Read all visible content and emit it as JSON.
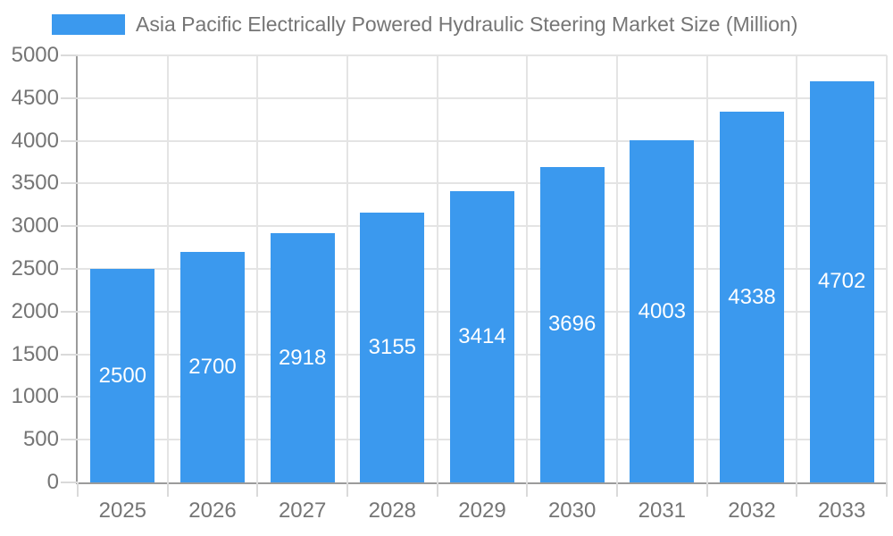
{
  "legend": {
    "swatch_color": "#3b99ee"
  },
  "chart_data": {
    "type": "bar",
    "title": "Asia Pacific Electrically Powered Hydraulic Steering Market Size (Million)",
    "categories": [
      "2025",
      "2026",
      "2027",
      "2028",
      "2029",
      "2030",
      "2031",
      "2032",
      "2033"
    ],
    "values": [
      2500,
      2700,
      2918,
      3155,
      3414,
      3696,
      4003,
      4338,
      4702
    ],
    "xlabel": "",
    "ylabel": "",
    "ylim": [
      0,
      5000
    ],
    "ytick_step": 500,
    "ytick_labels": [
      "0",
      "500",
      "1000",
      "1500",
      "2000",
      "2500",
      "3000",
      "3500",
      "4000",
      "4500",
      "5000"
    ],
    "grid": true,
    "legend_position": "top-left",
    "bar_color": "#3b99ee",
    "value_label_color": "#ffffff",
    "axis_text_color": "#757575",
    "gridline_color": "#e4e4e4",
    "axis_line_color": "#9b9b9b"
  }
}
